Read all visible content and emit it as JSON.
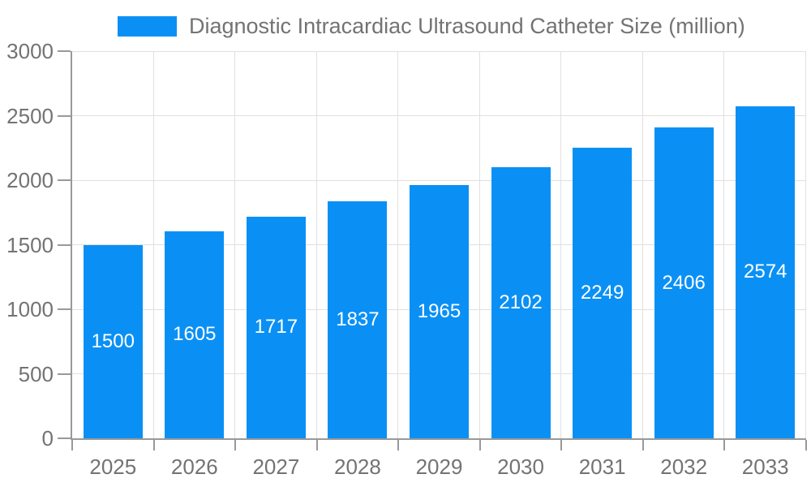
{
  "legend": {
    "label": "Diagnostic Intracardiac Ultrasound Catheter Size (million)"
  },
  "chart_data": {
    "type": "bar",
    "title": "Diagnostic Intracardiac Ultrasound Catheter Size (million)",
    "series_name": "Diagnostic Intracardiac Ultrasound Catheter Size (million)",
    "categories": [
      "2025",
      "2026",
      "2027",
      "2028",
      "2029",
      "2030",
      "2031",
      "2032",
      "2033"
    ],
    "values": [
      1500,
      1605,
      1717,
      1837,
      1965,
      2102,
      2249,
      2406,
      2574
    ],
    "bar_value_labels": [
      "1500",
      "1605",
      "1717",
      "1837",
      "1965",
      "2102",
      "2249",
      "2406",
      "2574"
    ],
    "xlabel": "",
    "ylabel": "",
    "ylim": [
      0,
      3000
    ],
    "yticks": [
      0,
      500,
      1000,
      1500,
      2000,
      2500,
      3000
    ],
    "ytick_labels": [
      "0",
      "500",
      "1000",
      "1500",
      "2000",
      "2500",
      "3000"
    ],
    "grid": true,
    "legend_position": "top",
    "value_labels_inside_bars": true,
    "colors": {
      "bar": "#0a90f5",
      "axis": "#999999",
      "grid": "#e0e0e0",
      "text": "#737373",
      "bar_label": "#ffffff",
      "background": "#ffffff"
    }
  }
}
